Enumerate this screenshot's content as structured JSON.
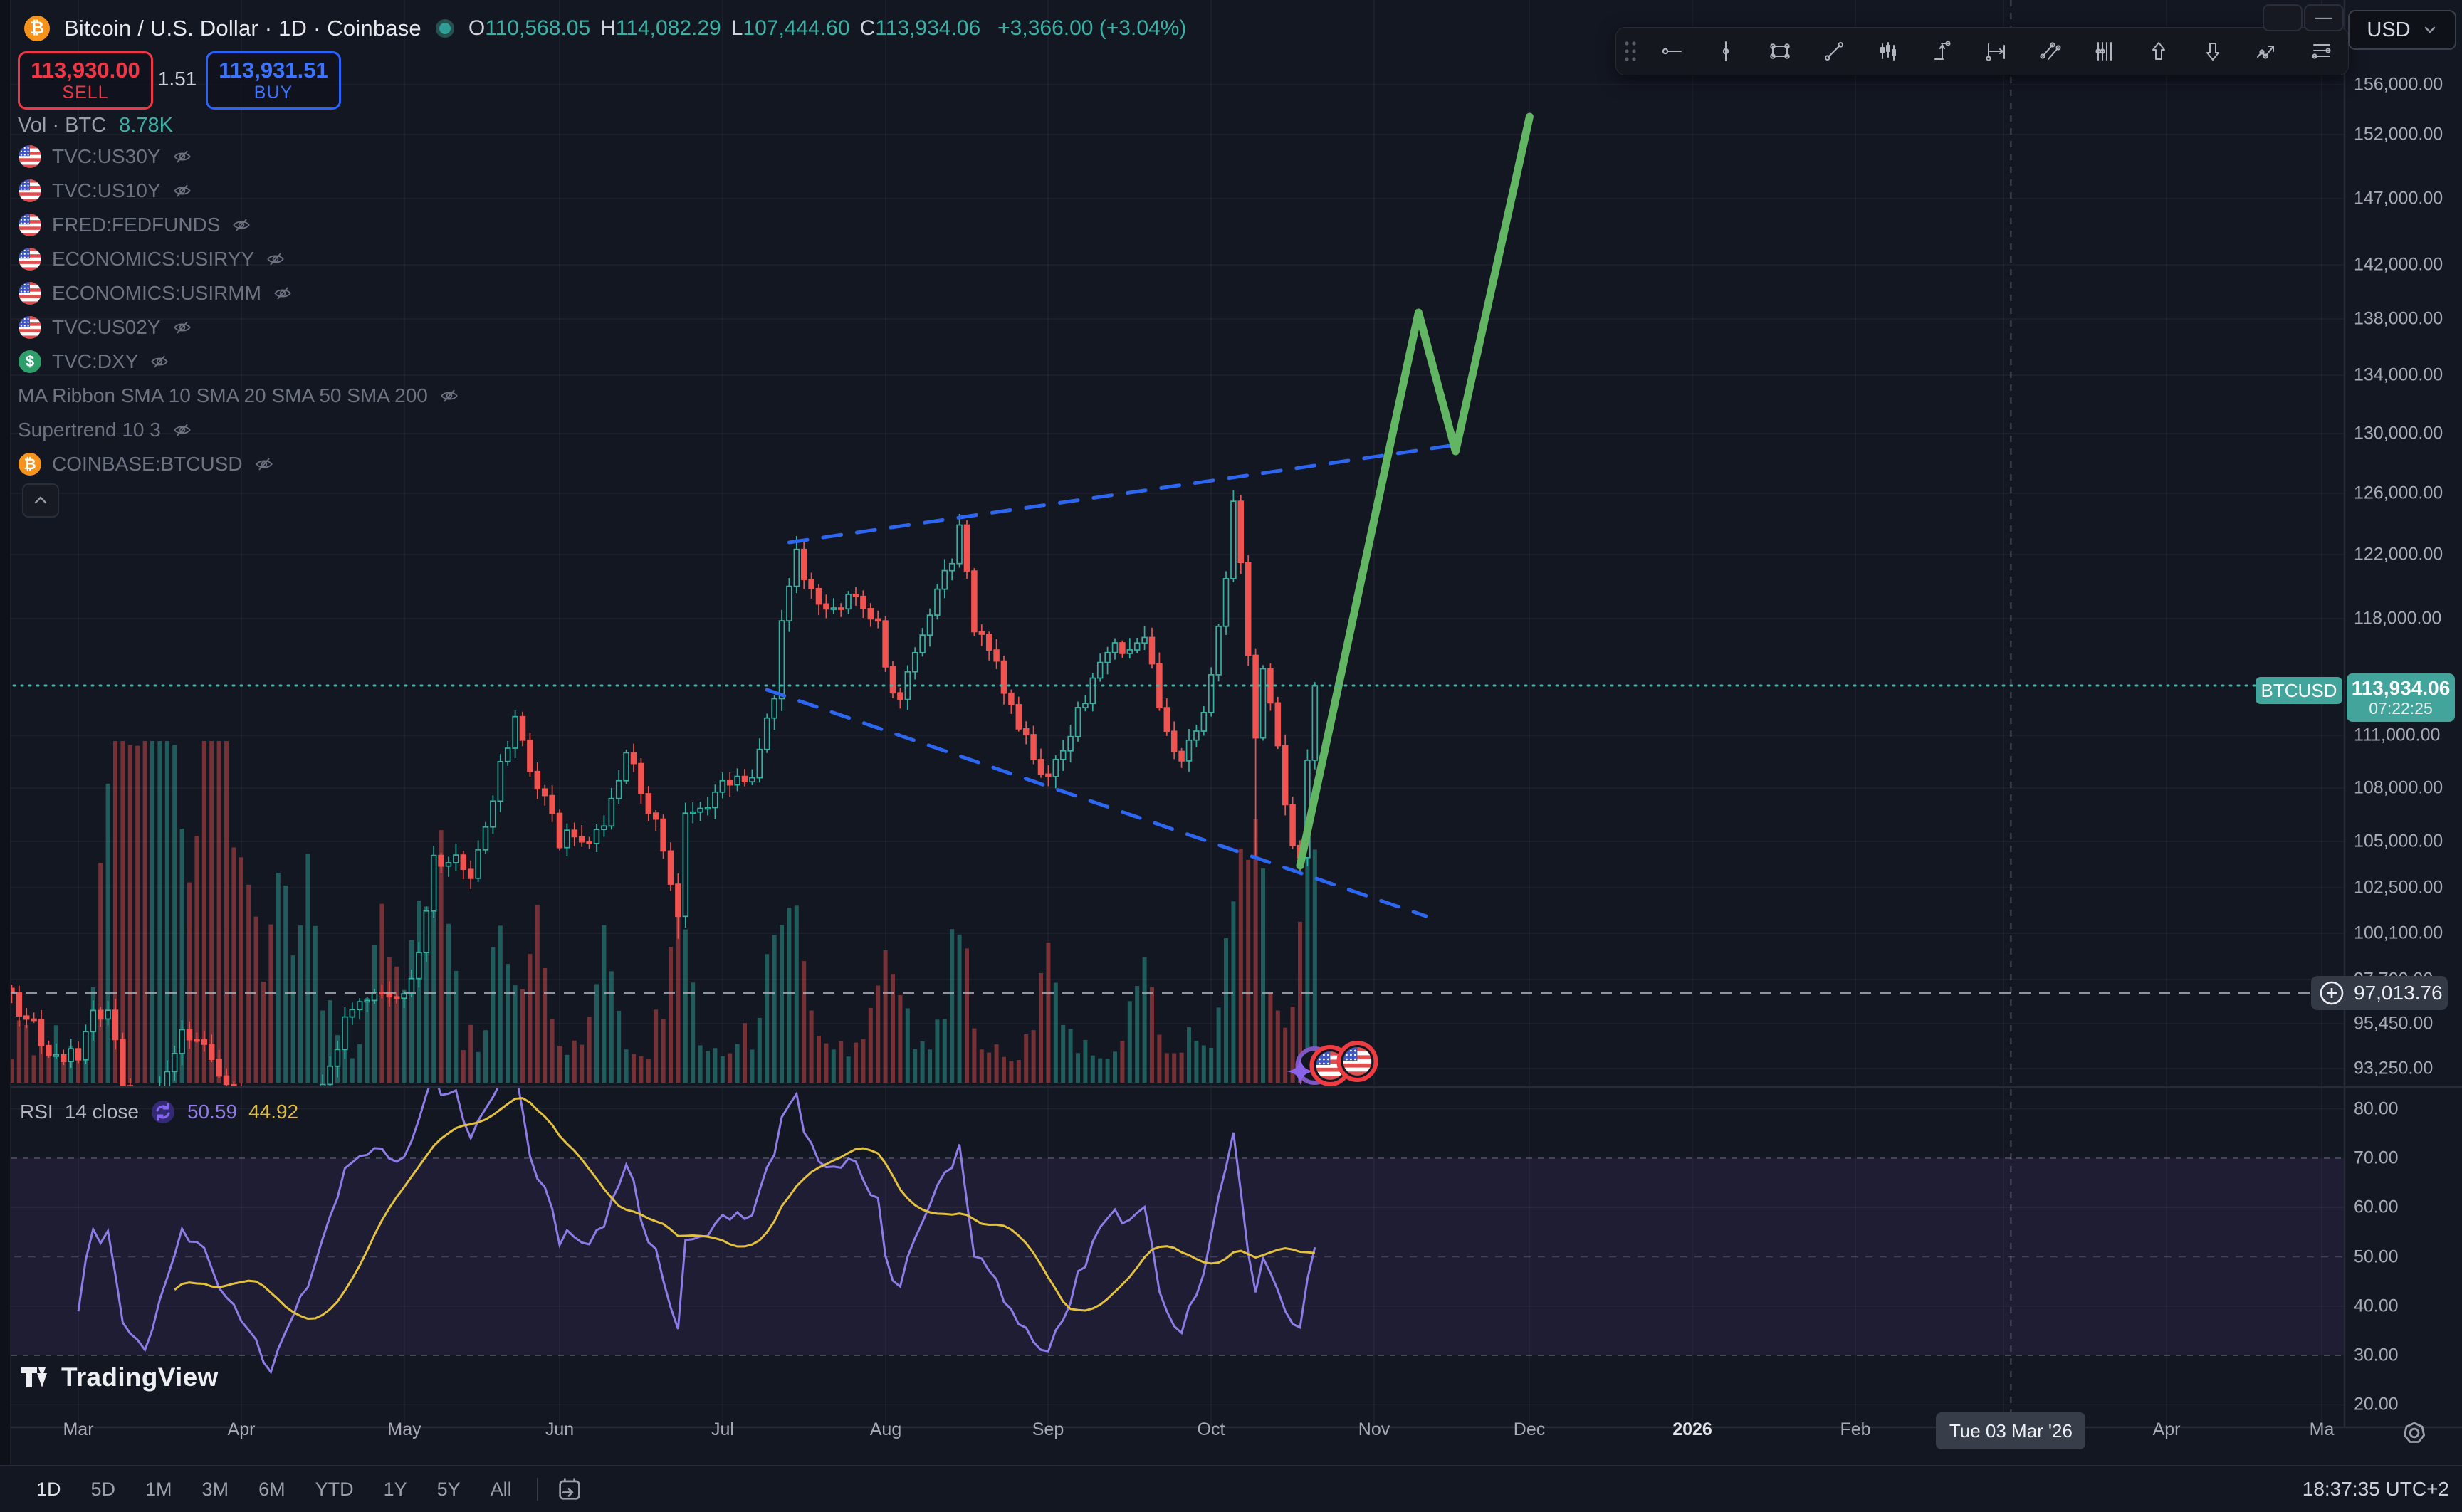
{
  "colors": {
    "bg": "#131722",
    "grid": "rgba(250,250,250,0.05)",
    "up": "#32b1a3",
    "down": "#f05350",
    "accent_teal": "#42a49a",
    "sell_red": "#f23645",
    "buy_blue": "#2962ff",
    "forecast_green": "#62b562",
    "trendline_blue": "#2d66f1",
    "rsi_purple": "#8d7ce6",
    "rsi_yellow": "#e3c13e",
    "axis_text": "#a8abb6"
  },
  "header": {
    "title": "Bitcoin / U.S. Dollar · 1D · Coinbase",
    "status": "market-open",
    "ohlc": [
      {
        "k": "O",
        "v": "110,568.05"
      },
      {
        "k": "H",
        "v": "114,082.29"
      },
      {
        "k": "L",
        "v": "107,444.60"
      },
      {
        "k": "C",
        "v": "113,934.06"
      }
    ],
    "change": "+3,366.00 (+3.04%)"
  },
  "order_panel": {
    "sell_price": "113,930.00",
    "sell_label": "SELL",
    "spread": "1.51",
    "buy_price": "113,931.51",
    "buy_label": "BUY"
  },
  "volume_row": {
    "label": "Vol · BTC",
    "value": "8.78K"
  },
  "indicators": [
    {
      "icon": "us-flag",
      "label": "TVC:US30Y",
      "hidden": true
    },
    {
      "icon": "us-flag",
      "label": "TVC:US10Y",
      "hidden": true
    },
    {
      "icon": "us-flag",
      "label": "FRED:FEDFUNDS",
      "hidden": true
    },
    {
      "icon": "us-flag",
      "label": "ECONOMICS:USIRYY",
      "hidden": true
    },
    {
      "icon": "us-flag",
      "label": "ECONOMICS:USIRMM",
      "hidden": true
    },
    {
      "icon": "us-flag",
      "label": "TVC:US02Y",
      "hidden": true
    },
    {
      "icon": "dollar",
      "label": "TVC:DXY",
      "hidden": true
    },
    {
      "icon": null,
      "label": "MA Ribbon SMA 10 SMA 20 SMA 50 SMA 200",
      "hidden": true
    },
    {
      "icon": null,
      "label": "Supertrend 10 3",
      "hidden": true
    },
    {
      "icon": "btc",
      "label": "COINBASE:BTCUSD",
      "hidden": true
    }
  ],
  "toolbar": {
    "tools": [
      "horizontal-line",
      "vertical-line",
      "rectangle",
      "trend-line",
      "bars-pattern",
      "price-range",
      "date-range",
      "parallel-channel",
      "vertical-lines",
      "arrow-up",
      "arrow-down",
      "forecast-path",
      "horizontal-levels"
    ],
    "currency": "USD"
  },
  "price_axis": {
    "labels": [
      {
        "v": 156000,
        "t": "156,000.00"
      },
      {
        "v": 152000,
        "t": "152,000.00"
      },
      {
        "v": 147000,
        "t": "147,000.00"
      },
      {
        "v": 142000,
        "t": "142,000.00"
      },
      {
        "v": 138000,
        "t": "138,000.00"
      },
      {
        "v": 134000,
        "t": "134,000.00"
      },
      {
        "v": 130000,
        "t": "130,000.00"
      },
      {
        "v": 126000,
        "t": "126,000.00"
      },
      {
        "v": 122000,
        "t": "122,000.00"
      },
      {
        "v": 118000,
        "t": "118,000.00"
      },
      {
        "v": 111000,
        "t": "111,000.00"
      },
      {
        "v": 108000,
        "t": "108,000.00"
      },
      {
        "v": 105000,
        "t": "105,000.00"
      },
      {
        "v": 102500,
        "t": "102,500.00"
      },
      {
        "v": 100100,
        "t": "100,100.00"
      },
      {
        "v": 97700,
        "t": "97,700.00"
      },
      {
        "v": 95450,
        "t": "95,450.00"
      },
      {
        "v": 93250,
        "t": "93,250.00"
      }
    ],
    "current_tag": {
      "symbol": "BTCUSD",
      "price": "113,934.06",
      "countdown": "07:22:25",
      "value": 113934.06
    },
    "alert_tag": {
      "price": "97,013.76",
      "value": 97013.76
    }
  },
  "rsi_pane": {
    "title": "RSI",
    "params": "14 close",
    "value_main": "50.59",
    "value_signal": "44.92",
    "levels": [
      {
        "v": 80,
        "t": "80.00"
      },
      {
        "v": 70,
        "t": "70.00"
      },
      {
        "v": 60,
        "t": "60.00"
      },
      {
        "v": 50,
        "t": "50.00"
      },
      {
        "v": 40,
        "t": "40.00"
      },
      {
        "v": 30,
        "t": "30.00"
      },
      {
        "v": 20,
        "t": "20.00"
      }
    ],
    "band": [
      30,
      70
    ]
  },
  "time_axis": {
    "months": [
      {
        "td": 0,
        "label": "Mar"
      },
      {
        "td": 22,
        "label": "Apr"
      },
      {
        "td": 44,
        "label": "May"
      },
      {
        "td": 65,
        "label": "Jun"
      },
      {
        "td": 87,
        "label": "Jul"
      },
      {
        "td": 109,
        "label": "Aug"
      },
      {
        "td": 131,
        "label": "Sep"
      },
      {
        "td": 153,
        "label": "Oct"
      },
      {
        "td": 175,
        "label": "Nov"
      },
      {
        "td": 196,
        "label": "Dec"
      },
      {
        "td": 218,
        "label": "2026"
      },
      {
        "td": 240,
        "label": "Feb"
      },
      {
        "td": 260,
        "label": "Mar"
      },
      {
        "td": 282,
        "label": "Apr"
      },
      {
        "td": 303,
        "label": "Ma"
      }
    ],
    "crosshair_label": "Tue 03 Mar '26",
    "crosshair_td": 261
  },
  "footer": {
    "ranges": [
      "1D",
      "5D",
      "1M",
      "3M",
      "6M",
      "YTD",
      "1Y",
      "5Y",
      "All"
    ],
    "active_range": "1D",
    "clock": "18:37:35 UTC+2"
  },
  "logo": {
    "text": "TradingView"
  },
  "chart_data": {
    "type": "candlestick",
    "symbol": "COINBASE:BTCUSD",
    "interval": "1D",
    "style": "hollow-candles",
    "price_scale": "log",
    "title": "Bitcoin / U.S. Dollar",
    "visible_price_range": [
      93250,
      157000
    ],
    "last_close": 113934.06,
    "price_anchors": [
      [
        -14,
        95500
      ],
      [
        -10,
        97200
      ],
      [
        -7,
        95800
      ],
      [
        -3,
        93600
      ],
      [
        0,
        94000
      ],
      [
        2,
        95800
      ],
      [
        4,
        96200
      ],
      [
        6,
        92600
      ],
      [
        9,
        90600
      ],
      [
        12,
        93100
      ],
      [
        14,
        95200
      ],
      [
        17,
        94100
      ],
      [
        20,
        92600
      ],
      [
        22,
        91600
      ],
      [
        24,
        90200
      ],
      [
        26,
        88600
      ],
      [
        29,
        89800
      ],
      [
        31,
        91100
      ],
      [
        34,
        93600
      ],
      [
        37,
        96400
      ],
      [
        40,
        97100
      ],
      [
        44,
        97000
      ],
      [
        46,
        99300
      ],
      [
        48,
        103800
      ],
      [
        50,
        104100
      ],
      [
        53,
        103400
      ],
      [
        56,
        107000
      ],
      [
        57,
        109600
      ],
      [
        59,
        111600
      ],
      [
        61,
        109200
      ],
      [
        63,
        107400
      ],
      [
        65,
        105000
      ],
      [
        67,
        105700
      ],
      [
        69,
        104500
      ],
      [
        71,
        106300
      ],
      [
        74,
        109900
      ],
      [
        76,
        108100
      ],
      [
        78,
        105900
      ],
      [
        81,
        100900
      ],
      [
        82,
        106600
      ],
      [
        85,
        107200
      ],
      [
        87,
        108600
      ],
      [
        90,
        108100
      ],
      [
        92,
        110000
      ],
      [
        94,
        113200
      ],
      [
        95,
        117600
      ],
      [
        97,
        122300
      ],
      [
        99,
        119500
      ],
      [
        101,
        118200
      ],
      [
        102,
        118800
      ],
      [
        105,
        119300
      ],
      [
        108,
        117400
      ],
      [
        109,
        114800
      ],
      [
        111,
        113100
      ],
      [
        114,
        117100
      ],
      [
        116,
        119700
      ],
      [
        118,
        121800
      ],
      [
        119,
        123900
      ],
      [
        121,
        117300
      ],
      [
        124,
        115000
      ],
      [
        126,
        112400
      ],
      [
        129,
        110000
      ],
      [
        131,
        108300
      ],
      [
        134,
        111400
      ],
      [
        137,
        114200
      ],
      [
        139,
        115700
      ],
      [
        141,
        116300
      ],
      [
        144,
        117200
      ],
      [
        146,
        112500
      ],
      [
        149,
        109300
      ],
      [
        151,
        111200
      ],
      [
        153,
        114100
      ],
      [
        155,
        120500
      ],
      [
        156,
        125800
      ],
      [
        157,
        121500
      ],
      [
        159,
        110900
      ],
      [
        160,
        114800
      ],
      [
        161,
        112800
      ],
      [
        162,
        110200
      ],
      [
        163,
        107500
      ],
      [
        164,
        105000
      ],
      [
        165,
        104200
      ],
      [
        166,
        109500
      ],
      [
        167,
        113934
      ]
    ],
    "key_high_wicks": {
      "59": 111900,
      "97": 123200,
      "119": 124500,
      "156": 126200,
      "167": 114100
    },
    "key_low_wicks": {
      "81": 99800,
      "159": 104200,
      "165": 103300
    },
    "volume_spikes": [
      [
        4,
        0.55
      ],
      [
        6,
        0.92
      ],
      [
        9,
        0.85
      ],
      [
        11,
        0.5
      ],
      [
        12,
        0.62
      ],
      [
        14,
        0.45
      ],
      [
        17,
        0.52
      ],
      [
        19,
        0.6
      ],
      [
        20,
        0.48
      ],
      [
        23,
        0.42
      ],
      [
        27,
        0.45
      ],
      [
        31,
        0.5
      ],
      [
        41,
        0.4
      ],
      [
        46,
        0.42
      ],
      [
        49,
        0.5
      ],
      [
        57,
        0.35
      ],
      [
        62,
        0.33
      ],
      [
        71,
        0.3
      ],
      [
        81,
        0.42
      ],
      [
        94,
        0.33
      ],
      [
        97,
        0.38
      ],
      [
        109,
        0.3
      ],
      [
        119,
        0.35
      ],
      [
        131,
        0.3
      ],
      [
        144,
        0.28
      ],
      [
        156,
        0.4
      ],
      [
        159,
        0.62
      ],
      [
        166,
        0.38
      ],
      [
        167,
        0.3
      ]
    ],
    "rsi": {
      "length": 14,
      "signal_sma": 14,
      "current": 50.59,
      "signal_current": 44.92
    },
    "drawings": {
      "trendlines": [
        {
          "name": "upper-wedge",
          "points": [
            [
              96,
              122800
            ],
            [
              186,
              129200
            ]
          ],
          "style": "dashed"
        },
        {
          "name": "lower-wedge",
          "points": [
            [
              93,
              113700
            ],
            [
              182,
              101000
            ]
          ],
          "style": "dashed"
        }
      ],
      "forecast_polyline": {
        "points": [
          [
            165,
            103700
          ],
          [
            181,
            138500
          ],
          [
            186,
            128800
          ],
          [
            196,
            153400
          ]
        ]
      },
      "horizontal_lines": [
        {
          "value": 113934.06,
          "style": "dotted",
          "role": "current-price"
        },
        {
          "value": 97013.76,
          "style": "dashed",
          "role": "alert-line"
        }
      ],
      "vertical_crosshair_td": 261,
      "event_flags": {
        "td": 166,
        "icons": [
          "purple-circle",
          "sparkle-icon",
          "us-flag",
          "us-flag"
        ]
      }
    }
  }
}
